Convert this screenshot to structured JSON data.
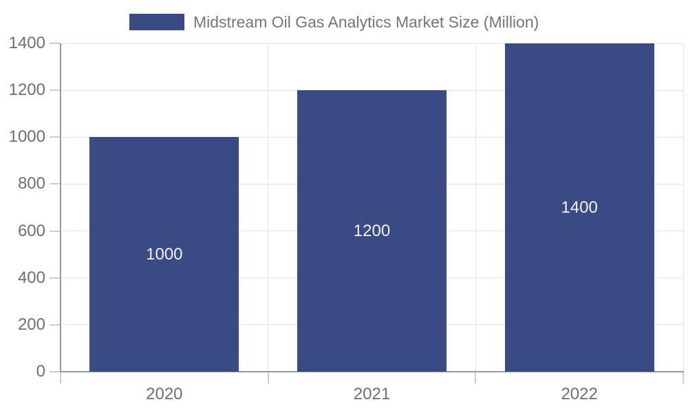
{
  "chart_data": {
    "type": "bar",
    "title": "Midstream Oil Gas Analytics Market Size (Million)",
    "legend": {
      "label": "Midstream Oil Gas Analytics Market Size (Million)",
      "position": "top"
    },
    "categories": [
      "2020",
      "2021",
      "2022"
    ],
    "series": [
      {
        "name": "Midstream Oil Gas Analytics Market Size (Million)",
        "values": [
          1000,
          1200,
          1400
        ]
      }
    ],
    "data_labels": [
      "1000",
      "1200",
      "1400"
    ],
    "xlabel": "",
    "ylabel": "",
    "ylim": [
      0,
      1400
    ],
    "yticks": [
      0,
      200,
      400,
      600,
      800,
      1000,
      1200,
      1400
    ],
    "grid": true,
    "colors": {
      "bar": "#3A4A84",
      "axis_line": "#999999",
      "gridline": "#E4E4E4",
      "tick": "#CCCCCC",
      "tick_label": "#6E6E73",
      "legend_text": "#757575",
      "data_label": "#F2F2F2",
      "background": "#FFFFFF"
    }
  }
}
